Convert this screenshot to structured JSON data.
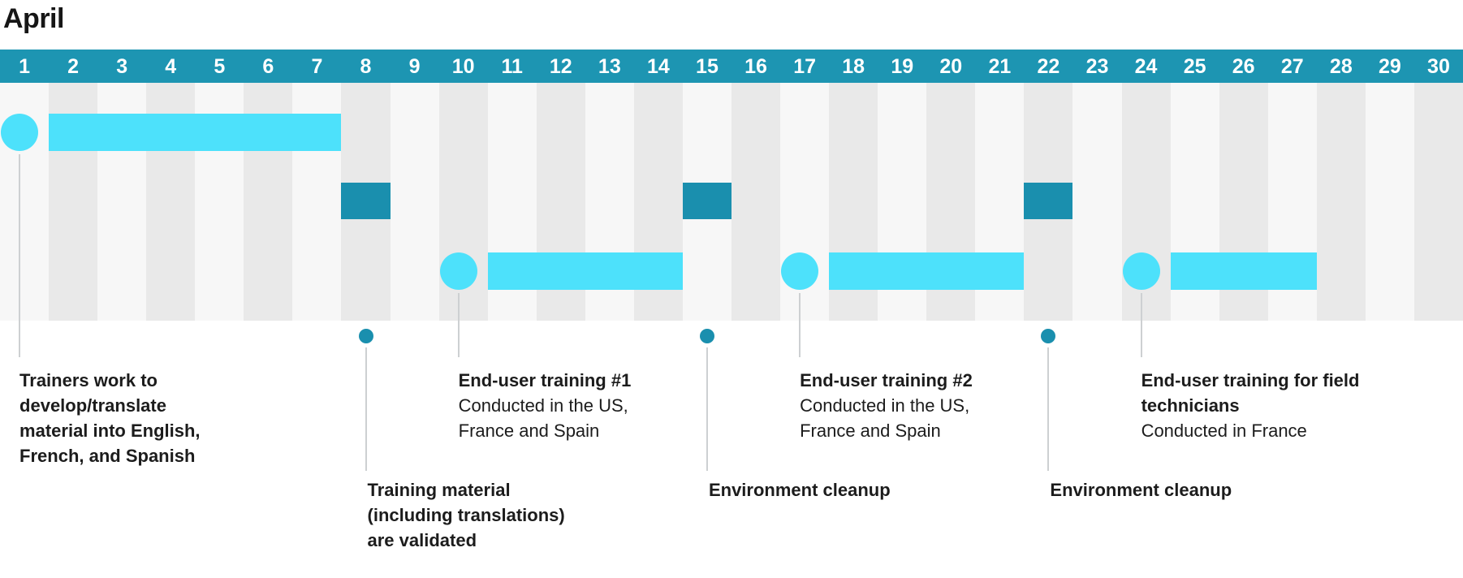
{
  "chart_data": {
    "type": "bar",
    "subtype": "gantt-timeline",
    "title": "April",
    "x_axis": {
      "unit": "day-of-month",
      "ticks": [
        1,
        2,
        3,
        4,
        5,
        6,
        7,
        8,
        9,
        10,
        11,
        12,
        13,
        14,
        15,
        16,
        17,
        18,
        19,
        20,
        21,
        22,
        23,
        24,
        25,
        26,
        27,
        28,
        29,
        30
      ]
    },
    "tasks": [
      {
        "name": "trainers-develop-translate-material",
        "row": 1,
        "marker_day": 1,
        "bar_start_day": 2,
        "bar_end_day": 7,
        "label_heading": [
          "Trainers work to",
          "develop/translate",
          "material into English,",
          "French, and Spanish"
        ],
        "label_body": []
      },
      {
        "name": "end-user-training-1",
        "row": 3,
        "marker_day": 10,
        "bar_start_day": 11,
        "bar_end_day": 14,
        "label_heading": [
          "End-user training #1"
        ],
        "label_body": [
          "Conducted in the US,",
          "France and Spain"
        ]
      },
      {
        "name": "end-user-training-2",
        "row": 3,
        "marker_day": 17,
        "bar_start_day": 18,
        "bar_end_day": 21,
        "label_heading": [
          "End-user training #2"
        ],
        "label_body": [
          "Conducted in the US,",
          "France and Spain"
        ]
      },
      {
        "name": "end-user-training-field-technicians",
        "row": 3,
        "marker_day": 24,
        "bar_start_day": 25,
        "bar_end_day": 27,
        "label_heading": [
          "End-user training for field",
          "technicians"
        ],
        "label_body": [
          "Conducted in France"
        ]
      }
    ],
    "milestones": [
      {
        "name": "training-material-validated",
        "day": 8,
        "label_heading": [
          "Training material",
          "(including translations)",
          "are validated"
        ]
      },
      {
        "name": "environment-cleanup-1",
        "day": 15,
        "label_heading": [
          "Environment cleanup"
        ]
      },
      {
        "name": "environment-cleanup-2",
        "day": 22,
        "label_heading": [
          "Environment cleanup"
        ]
      }
    ],
    "colors": {
      "header_teal": "#1d95b2",
      "milestone_teal": "#1a8fae",
      "bar_cyan": "#4de1fb",
      "stripe_light": "#f7f7f7",
      "stripe_dark": "#e9e9e9",
      "leader_line_gray": "#cdd0d2",
      "text": "#1c1c1c"
    }
  }
}
